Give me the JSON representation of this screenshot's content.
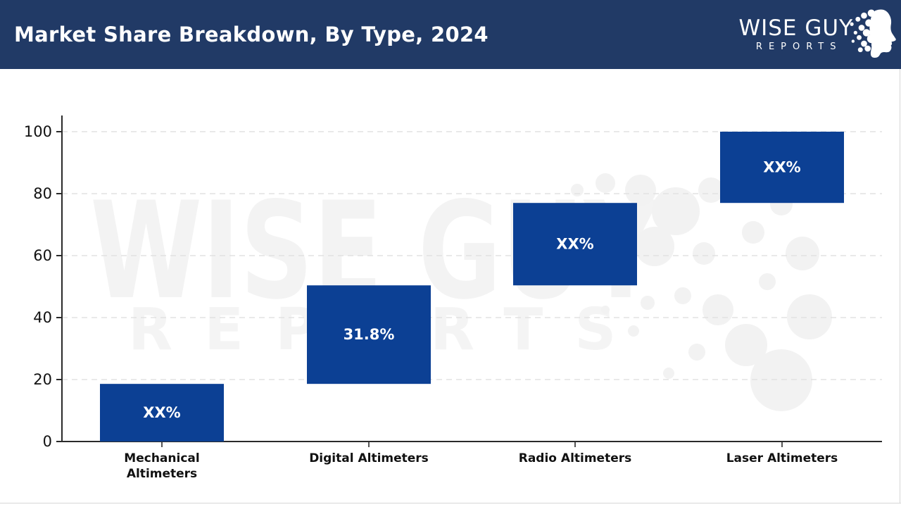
{
  "header": {
    "title": "Market Share Breakdown, By Type, 2024"
  },
  "logo": {
    "line1": "WISE GUY",
    "line2": "REPORTS"
  },
  "watermark": {
    "line1": "WISE GUY",
    "line2": "REPORTS"
  },
  "chart_data": {
    "type": "bar",
    "subtype": "floating-waterfall",
    "title": "Market Share Breakdown, By Type, 2024",
    "categories": [
      "Mechanical\nAltimeters",
      "Digital Altimeters",
      "Radio Altimeters",
      "Laser Altimeters"
    ],
    "bars": [
      {
        "category": "Mechanical Altimeters",
        "start": 0,
        "end": 18.6,
        "label": "XX%"
      },
      {
        "category": "Digital Altimeters",
        "start": 18.6,
        "end": 50.4,
        "label": "31.8%"
      },
      {
        "category": "Radio Altimeters",
        "start": 50.4,
        "end": 77.0,
        "label": "XX%"
      },
      {
        "category": "Laser Altimeters",
        "start": 77.0,
        "end": 100,
        "label": "XX%"
      }
    ],
    "ylim": [
      0,
      100
    ],
    "yticks": [
      0,
      20,
      40,
      60,
      80,
      100
    ],
    "xlabel": "",
    "ylabel": "",
    "grid": "horizontal-dashed",
    "legend": "none",
    "colors": {
      "bar": "#0c4094",
      "bar_label": "#ffffff",
      "axis": "#2a2a2a",
      "tick_label": "#111111",
      "category_label": "#111111",
      "gridline": "#e2e2e2",
      "header_bg": "#213a66",
      "watermark": "#f2f2f2"
    }
  }
}
